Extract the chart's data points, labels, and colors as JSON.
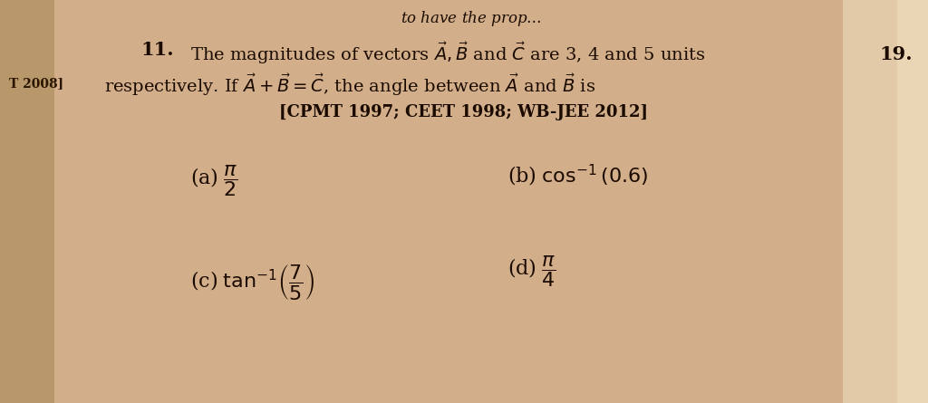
{
  "background_color": "#c8a882",
  "page_color": "#d4b896",
  "right_fade_color": "#e8d5bc",
  "text_color": "#1a0a00",
  "top_partial": "to have the prop",
  "q_number": "11.",
  "side_number": "19.",
  "left_label_top": "T 2008]",
  "line1": "The magnitudes of vectors $\\vec{A},\\vec{B}$ and $\\vec{C}$ are 3, 4 and 5 units",
  "line2": "respectively. If $\\vec{A}+\\vec{B}=\\vec{C}$, the angle between $\\vec{A}$ and $\\vec{B}$ is",
  "ref": "[CPMT 1997; CEET 1998; WB-JEE 2012]",
  "opt_a": "(a)$\\;\\dfrac{\\pi}{2}$",
  "opt_b": "(b)$\\;\\cos^{-1}(0.6)$",
  "opt_c": "(c)$\\;\\tan^{-1}\\!\\left(\\dfrac{7}{5}\\right)$",
  "opt_d": "(d)$\\;\\dfrac{\\pi}{4}$",
  "fontsize_body": 14,
  "fontsize_ref": 13,
  "fontsize_opt": 16
}
